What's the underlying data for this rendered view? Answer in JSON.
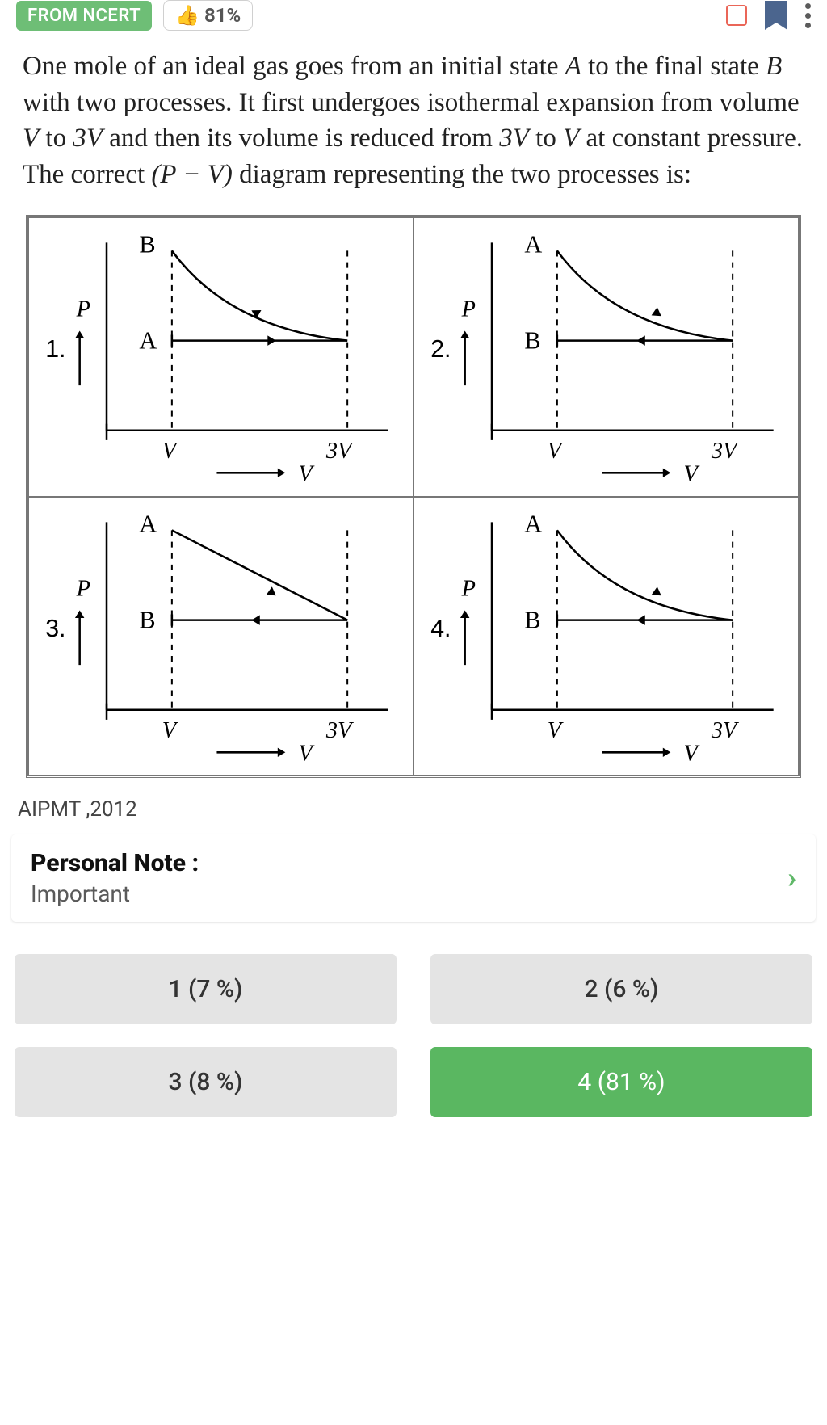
{
  "header": {
    "ncert_badge": "FROM NCERT",
    "like_percent": "81%"
  },
  "question": {
    "text_parts": [
      "One mole of an ideal gas goes from an initial state ",
      " to the final state ",
      " with two processes. It first undergoes isothermal expansion from volume ",
      " to ",
      " and then its volume is reduced from ",
      " to ",
      " at constant pressure. The correct ",
      " diagram representing the two processes is:"
    ],
    "vars": {
      "A": "A",
      "B": "B",
      "V": "V",
      "threeV": "3V",
      "PV": "(P − V)"
    }
  },
  "diagrams": {
    "panels": [
      {
        "id": "1",
        "top_label": "B",
        "mid_label": "A",
        "curve_dir": "up",
        "arrow_on_flat": "right",
        "arrow_on_curve": "toward_origin"
      },
      {
        "id": "2",
        "top_label": "A",
        "mid_label": "B",
        "curve_dir": "down",
        "arrow_on_flat": "left",
        "arrow_on_curve": "away_origin"
      },
      {
        "id": "3",
        "top_label": "A",
        "mid_label": "B",
        "curve_dir": "down",
        "arrow_on_flat": "left",
        "arrow_on_curve": "away_origin"
      },
      {
        "id": "4",
        "top_label": "A",
        "mid_label": "B",
        "curve_dir": "down",
        "arrow_on_flat": "left",
        "arrow_on_curve": "away_origin"
      }
    ],
    "axis_labels": {
      "y": "P",
      "x_arrow_label": "V",
      "tick1": "V",
      "tick2": "3V"
    },
    "colors": {
      "line": "#000000",
      "dash": "#000000"
    },
    "stroke_width": 2.5,
    "font_family": "Georgia, serif",
    "label_fontsize": 28
  },
  "exam_tag": "AIPMT ,2012",
  "personal_note": {
    "title": "Personal Note :",
    "text": "Important"
  },
  "answers": [
    {
      "label": "1 (7 %)",
      "correct": false
    },
    {
      "label": "2 (6 %)",
      "correct": false
    },
    {
      "label": "3 (8 %)",
      "correct": false
    },
    {
      "label": "4 (81 %)",
      "correct": true
    }
  ],
  "colors": {
    "ncert_bg": "#5fb868",
    "correct_bg": "#5ab761",
    "wrong_bg": "#e4e4e4",
    "chevron": "#5fb868"
  }
}
